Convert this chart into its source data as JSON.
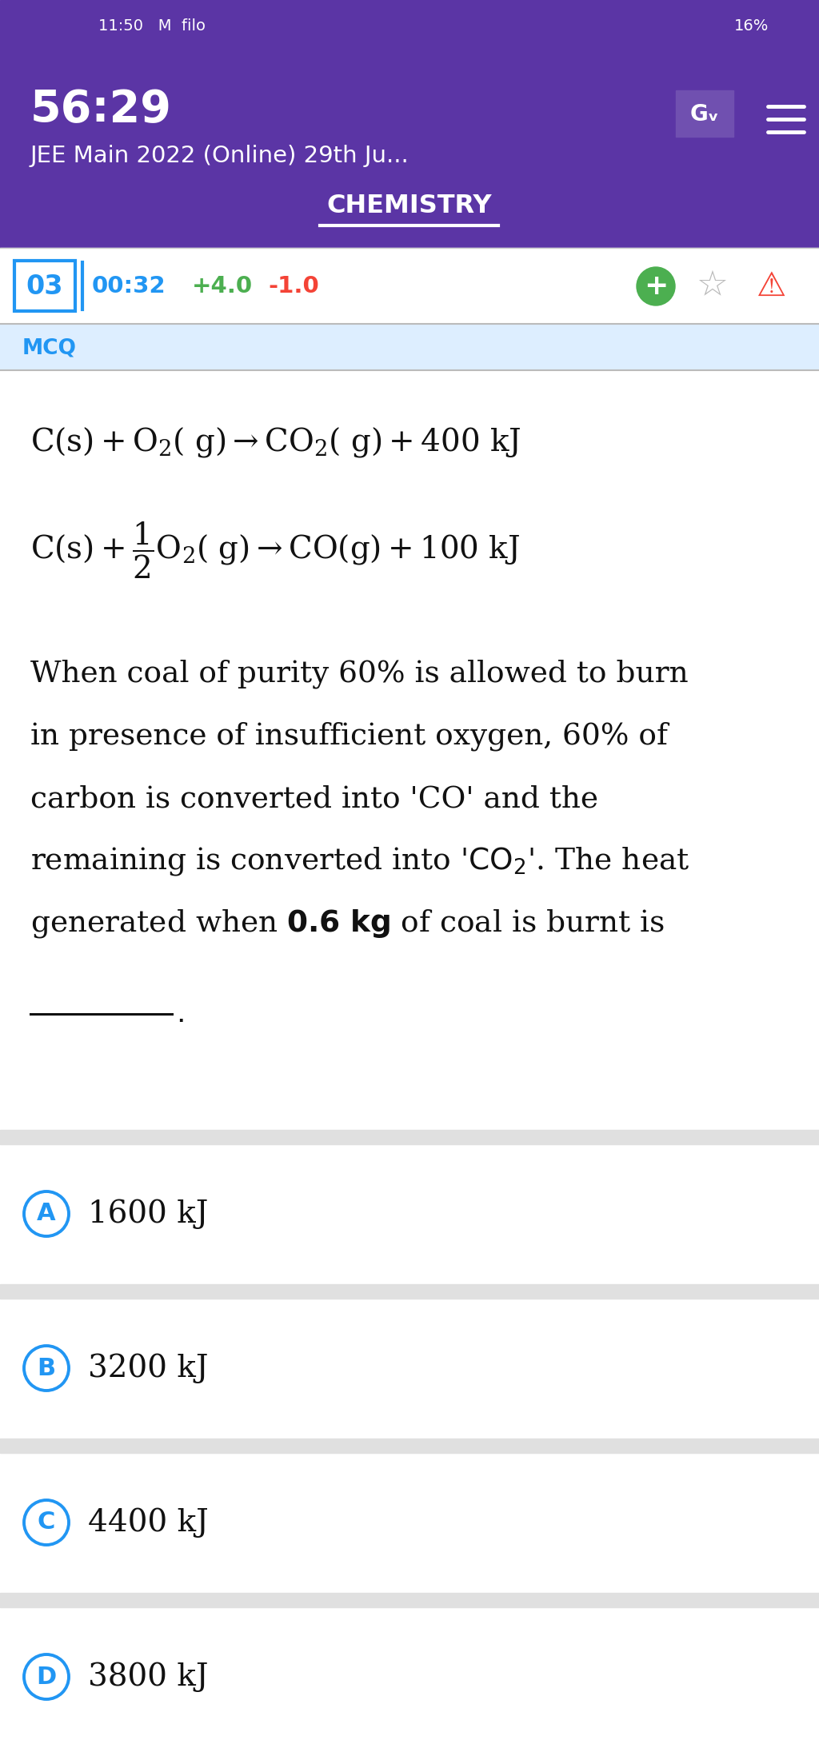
{
  "status_bar_bg": "#5b35a5",
  "header_bg": "#5b35a5",
  "timer": "56:29",
  "subtitle": "JEE Main 2022 (Online) 29th Ju...",
  "subject": "CHEMISTRY",
  "question_num": "03",
  "question_num_border_color": "#2196F3",
  "time_text": "00:32",
  "time_color": "#2196F3",
  "marks_pos": "+4.0",
  "marks_pos_color": "#4CAF50",
  "marks_neg": "-1.0",
  "marks_neg_color": "#F44336",
  "mcq_label": "MCQ",
  "mcq_label_color": "#2196F3",
  "mcq_bg": "#ddeeff",
  "question_bg": "#ffffff",
  "option_circle_color": "#2196F3",
  "separator_color": "#d8d8d8",
  "text_color": "#111111",
  "options": [
    {
      "label": "A",
      "text": "1600 kJ"
    },
    {
      "label": "B",
      "text": "3200 kJ"
    },
    {
      "label": "C",
      "text": "4400 kJ"
    },
    {
      "label": "D",
      "text": "3800 kJ"
    }
  ],
  "fig_width": 10.24,
  "fig_height": 21.76
}
